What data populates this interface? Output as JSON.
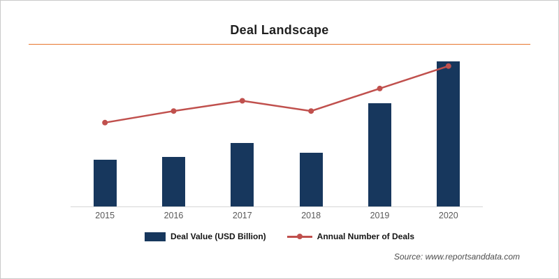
{
  "header": {
    "title": "Deal Landscape"
  },
  "chart_data": {
    "type": "bar+line combo",
    "title": "Deal Landscape",
    "categories": [
      "2015",
      "2016",
      "2017",
      "2018",
      "2019",
      "2020"
    ],
    "series": [
      {
        "name": "Deal Value (USD Billion)",
        "type": "bar",
        "values": [
          10,
          10.5,
          13.5,
          11.5,
          22,
          31
        ],
        "color": "#17375d",
        "ylim": [
          0,
          32
        ]
      },
      {
        "name": "Annual Number of Deals",
        "type": "line",
        "values": [
          123,
          140,
          155,
          140,
          173,
          206
        ],
        "color": "#c0504d",
        "ylim": [
          0,
          220
        ]
      }
    ],
    "xlabel": "",
    "ylabel": "",
    "grid": false,
    "legend_position": "bottom",
    "note": "No numeric axis labels are shown in the source image; series values are estimated from bar heights and line positions."
  },
  "footer": {
    "source": "Source: www.reportsanddata.com"
  },
  "colors": {
    "bar": "#17375d",
    "line": "#c0504d",
    "title_rule": "#e8762c",
    "axis": "#d6d6d6"
  }
}
